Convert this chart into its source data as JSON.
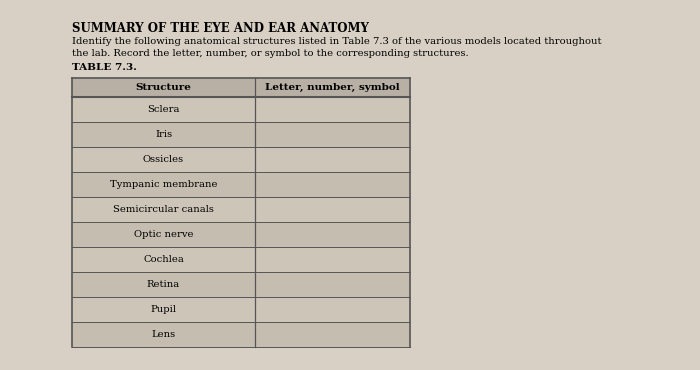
{
  "title": "SUMMARY OF THE EYE AND EAR ANATOMY",
  "subtitle_line1": "Identify the following anatomical structures listed in Table 7.3 of the various models located throughout",
  "subtitle_line2": "the lab. Record the letter, number, or symbol to the corresponding structures.",
  "table_label": "TABLE 7.3.",
  "col1_header": "Structure",
  "col2_header": "Letter, number, symbol",
  "rows": [
    "Sclera",
    "Iris",
    "Ossicles",
    "Tympanic membrane",
    "Semicircular canals",
    "Optic nerve",
    "Cochlea",
    "Retina",
    "Pupil",
    "Lens"
  ],
  "bg_color": "#d8d0c4",
  "header_bg": "#b8b0a4",
  "row_alt_bg": "#ccc4b8",
  "table_line_color": "#555555",
  "title_fontsize": 8.5,
  "subtitle_fontsize": 7.2,
  "table_label_fontsize": 7.5,
  "header_fontsize": 7.5,
  "row_fontsize": 7.2
}
